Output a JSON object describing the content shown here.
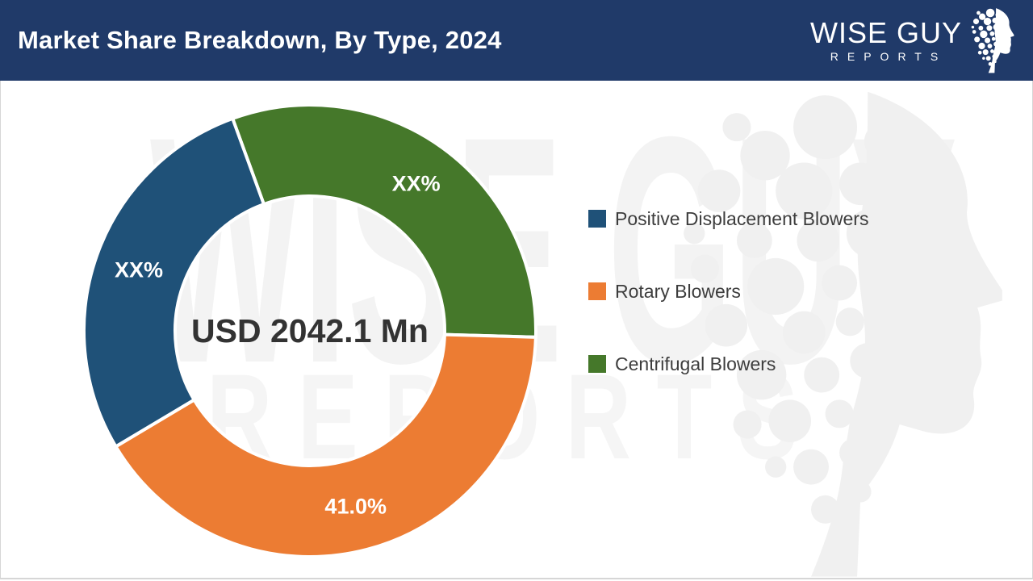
{
  "header": {
    "title": "Market Share Breakdown, By Type, 2024",
    "background_color": "#203a69",
    "logo": {
      "line1": "WISE GUY",
      "line2": "REPORTS"
    }
  },
  "watermark": {
    "line1": "WISE GUY",
    "line2": "REPORTS"
  },
  "chart_data": {
    "type": "pie",
    "variant": "donut",
    "title": "Market Share Breakdown, By Type, 2024",
    "center_label": "USD 2042.1 Mn",
    "legend_position": "right",
    "start_angle_deg": 340,
    "draw_order": [
      2,
      1,
      0
    ],
    "slices": [
      {
        "label": "Positive Displacement Blowers",
        "display_value": "XX%",
        "value_pct_est": 28,
        "color": "#1f5178"
      },
      {
        "label": "Rotary Blowers",
        "display_value": "41.0%",
        "value_pct_est": 41,
        "color": "#ec7c33"
      },
      {
        "label": "Centrifugal Blowers",
        "display_value": "XX%",
        "value_pct_est": 31,
        "color": "#45782a"
      }
    ],
    "geometry": {
      "outer_radius": 280,
      "inner_radius": 167,
      "label_radius": 225,
      "gap_stroke": "#ffffff"
    }
  }
}
